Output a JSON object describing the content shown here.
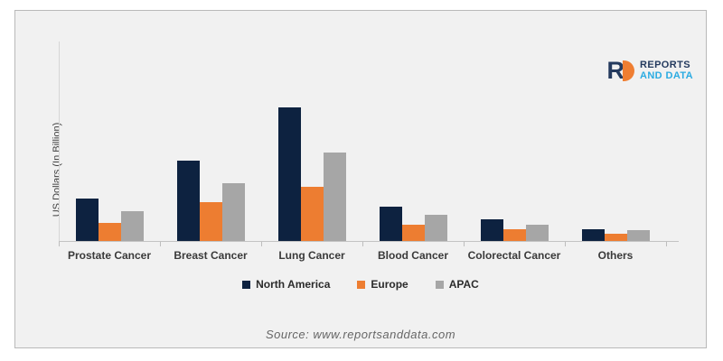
{
  "panel": {
    "background": "#f1f1f1",
    "border_color": "#b9b9b9"
  },
  "logo": {
    "mark_letter": "R",
    "line1": "REPORTS",
    "line2": "AND DATA",
    "navy": "#243a5e",
    "orange": "#ef7e32",
    "light_blue": "#2aabe2"
  },
  "chart_data": {
    "type": "bar",
    "title": "",
    "categories": [
      "Prostate Cancer",
      "Breast Cancer",
      "Lung Cancer",
      "Blood Cancer",
      "Colorectal Cancer",
      "Others"
    ],
    "series": [
      {
        "name": "North America",
        "color": "#0d2240",
        "values": [
          4.7,
          8.9,
          14.8,
          3.8,
          2.4,
          1.3
        ]
      },
      {
        "name": "Europe",
        "color": "#ed7d31",
        "values": [
          2.0,
          4.3,
          6.0,
          1.8,
          1.3,
          0.8
        ]
      },
      {
        "name": "APAC",
        "color": "#a6a6a6",
        "values": [
          3.3,
          6.4,
          9.8,
          2.9,
          1.8,
          1.2
        ]
      }
    ],
    "xlabel": "",
    "ylabel": "US Dollars  (In Billion)",
    "ylim": [
      0,
      22
    ],
    "grid": false,
    "legend_position": "bottom"
  },
  "source": "Source: www.reportsanddata.com"
}
